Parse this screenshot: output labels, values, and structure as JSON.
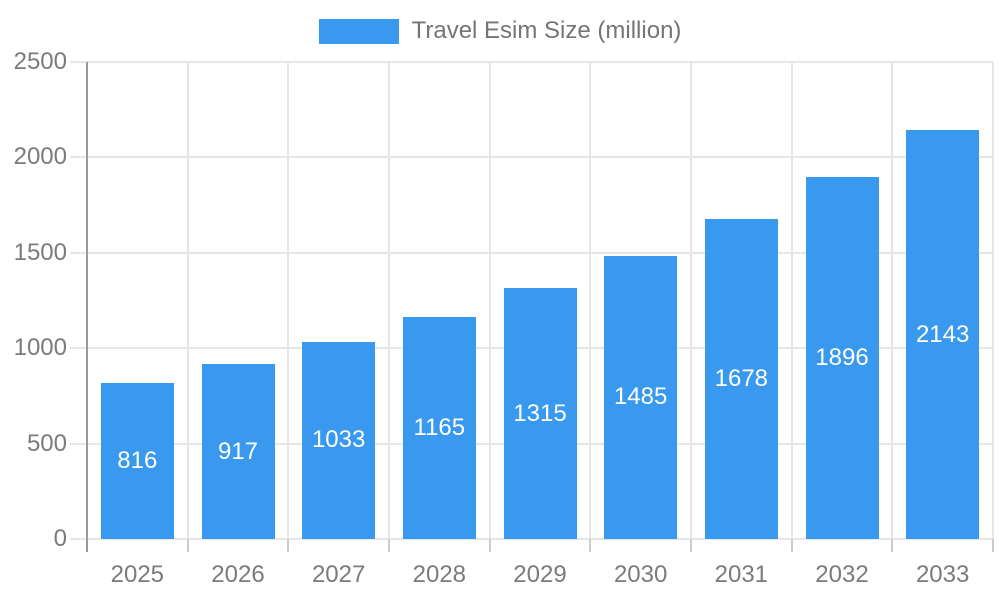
{
  "legend": {
    "label": "Travel Esim Size (million)"
  },
  "colors": {
    "bar": "#3899ee",
    "grid": "#e6e6e6",
    "axis_line": "#999999",
    "tick": "#cccccc",
    "axis_text": "#7b7b7b",
    "legend_text": "#757575",
    "value_label": "#ffffff",
    "background": "#ffffff"
  },
  "chart_data": {
    "type": "bar",
    "title": "Travel Esim Size (million)",
    "categories": [
      "2025",
      "2026",
      "2027",
      "2028",
      "2029",
      "2030",
      "2031",
      "2032",
      "2033"
    ],
    "values": [
      816,
      917,
      1033,
      1165,
      1315,
      1485,
      1678,
      1896,
      2143
    ],
    "xlabel": "",
    "ylabel": "",
    "ylim": [
      0,
      2500
    ],
    "yticks": [
      0,
      500,
      1000,
      1500,
      2000,
      2500
    ],
    "grid": true,
    "legend_entries": [
      "Travel Esim Size (million)"
    ],
    "legend_position": "top",
    "value_labels": "inside-center"
  }
}
